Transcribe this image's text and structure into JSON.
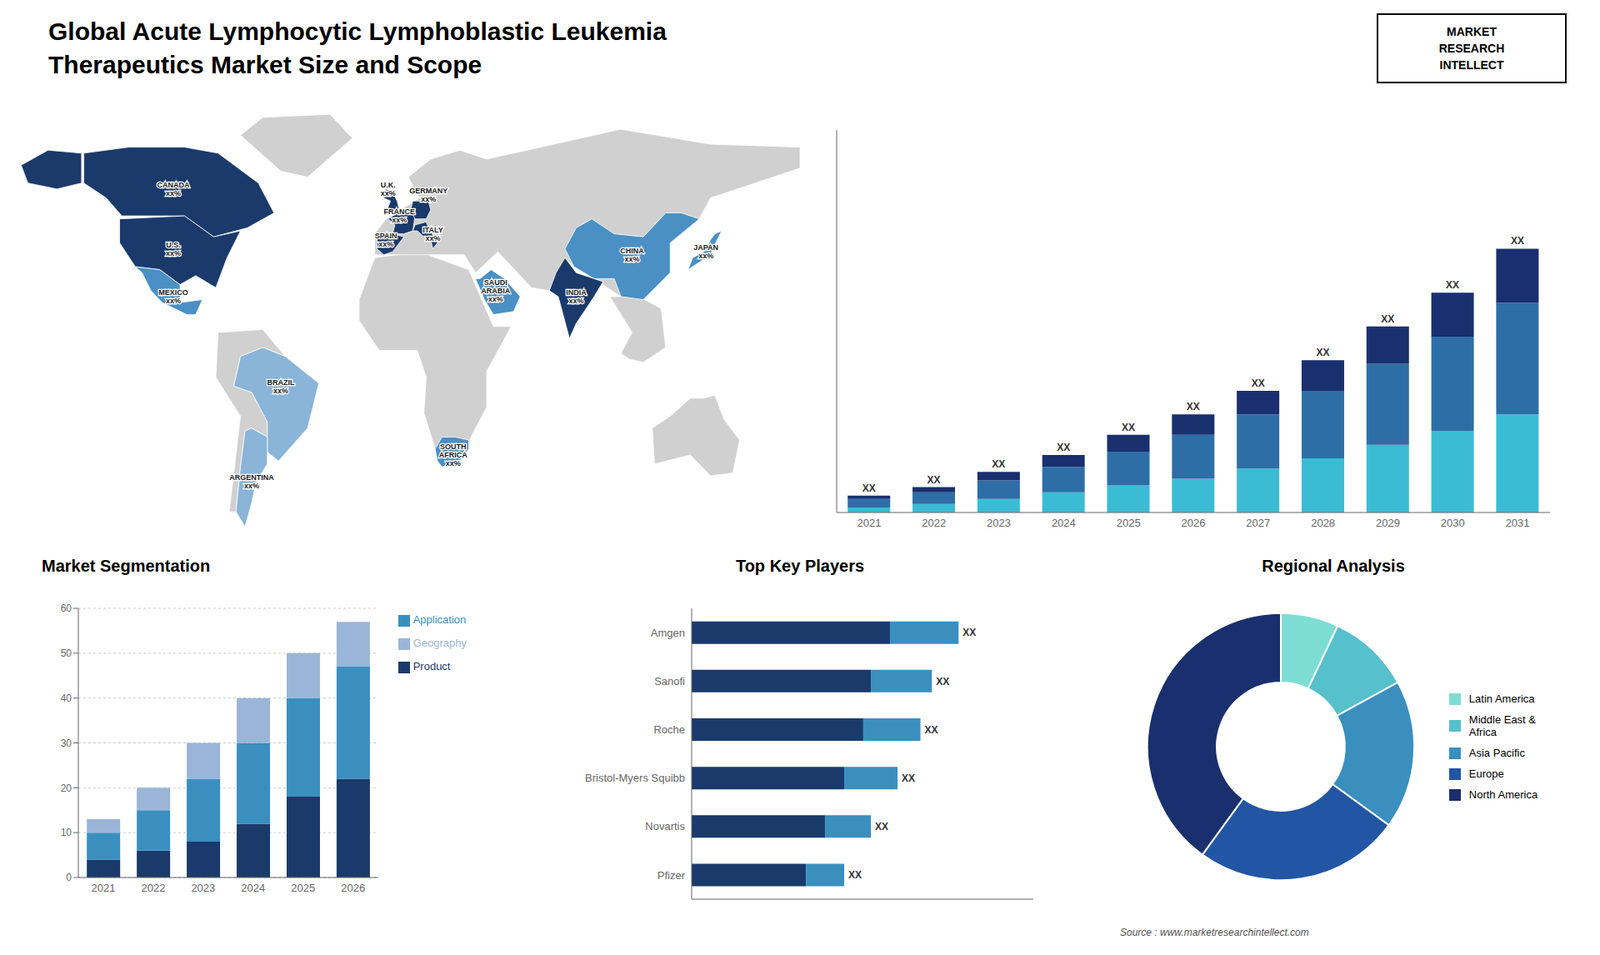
{
  "title": "Global Acute Lymphocytic Lymphoblastic Leukemia\nTherapeutics Market Size and Scope",
  "annotations": [
    "MARKET\nRESEARCH\nINTELLECT",
    "Source : www.marketresearchintellect.com"
  ],
  "chart_data": [
    {
      "type": "map",
      "categories": [
        "CANADA\nxx%",
        "U.S.\nxx%",
        "MEXICO\nxx%",
        "BRAZIL\nxx%",
        "ARGENTINA\nxx%",
        "U.K.\nxx%",
        "FRANCE\nxx%",
        "SPAIN\nxx%",
        "GERMANY\nxx%",
        "ITALY\nxx%",
        "SAUDI\nARABIA\nxx%",
        "SOUTH\nAFRICA\nxx%",
        "CHINA\nxx%",
        "INDIA\nxx%",
        "JAPAN\nxx%"
      ],
      "colors": [
        "#1a3a6b",
        "#1a3a6b",
        "#4a90c4",
        "#8ab4d8",
        "#8ab4d8",
        "#1a3a6b",
        "#1a3a6b",
        "#1a3a6b",
        "#1a3a6b",
        "#1a3a6b",
        "#4a90c4",
        "#4a90c4",
        "#4a90c4",
        "#1a3a6b",
        "#4a90c4"
      ],
      "color": "#d0d0d0"
    },
    {
      "type": "bar",
      "stacked": true,
      "categories": [
        "2021",
        "2022",
        "2023",
        "2024",
        "2025",
        "2026",
        "2027",
        "2028",
        "2029",
        "2030",
        "2031"
      ],
      "series": [
        {
          "color": "#3bbcd4",
          "values": [
            1.5,
            2.5,
            4,
            6,
            8,
            10,
            13,
            16,
            20,
            24,
            29
          ]
        },
        {
          "color": "#2e6ea6",
          "values": [
            2.5,
            3.5,
            5.5,
            7.5,
            10,
            13,
            16,
            20,
            24,
            28,
            33
          ]
        },
        {
          "color": "#1a2f6e",
          "values": [
            1,
            1.5,
            2.5,
            3.5,
            5,
            6,
            7,
            9,
            11,
            13,
            16
          ],
          "value_labels": [
            "XX",
            "XX",
            "XX",
            "XX",
            "XX",
            "XX",
            "XX",
            "XX",
            "XX",
            "XX",
            "XX"
          ]
        }
      ],
      "ylim": [
        0,
        113.1
      ],
      "tick_labels": "x"
    },
    {
      "type": "bar",
      "stacked": true,
      "title": "Market Segmentation",
      "categories": [
        "2021",
        "2022",
        "2023",
        "2024",
        "2025",
        "2026"
      ],
      "series": [
        {
          "name": "Product",
          "color": "#1a3a6b",
          "values": [
            4,
            6,
            8,
            12,
            18,
            22
          ]
        },
        {
          "name": "Application",
          "color": "#3a8fbf",
          "values": [
            6,
            9,
            14,
            18,
            22,
            25
          ]
        },
        {
          "name": "Geography",
          "color": "#9bb5d8",
          "values": [
            3,
            5,
            8,
            10,
            10,
            10
          ]
        }
      ],
      "ylim": [
        0,
        60
      ],
      "yticks": [
        0,
        10,
        20,
        30,
        40,
        50,
        60
      ],
      "grid": true,
      "legend": "upper right"
    },
    {
      "type": "bar",
      "stacked": true,
      "orientation": "horizontal",
      "title": "Top Key Players",
      "categories": [
        "Amgen",
        "Sanofi",
        "Roche",
        "Bristol-Myers Squibb",
        "Novartis",
        "Pfizer"
      ],
      "series": [
        {
          "color": "#1a3a6b",
          "values": [
            52,
            47,
            45,
            40,
            35,
            30
          ]
        },
        {
          "color": "#3a8fbf",
          "values": [
            18,
            16,
            15,
            14,
            12,
            10
          ],
          "value_labels": [
            "XX",
            "XX",
            "XX",
            "XX",
            "XX",
            "XX"
          ]
        }
      ],
      "xlim": [
        0,
        89.6
      ],
      "tick_labels": "y"
    },
    {
      "type": "donut",
      "title": "Regional Analysis",
      "categories": [
        "Latin America",
        "Middle East &\nAfrica",
        "Asia Pacific",
        "Europe",
        "North America"
      ],
      "values": [
        7,
        10,
        18,
        25,
        40
      ],
      "colors": [
        "#7dddd4",
        "#56c0cc",
        "#3a8fbf",
        "#2255a4",
        "#1a2f6e"
      ],
      "legend": "right"
    }
  ]
}
